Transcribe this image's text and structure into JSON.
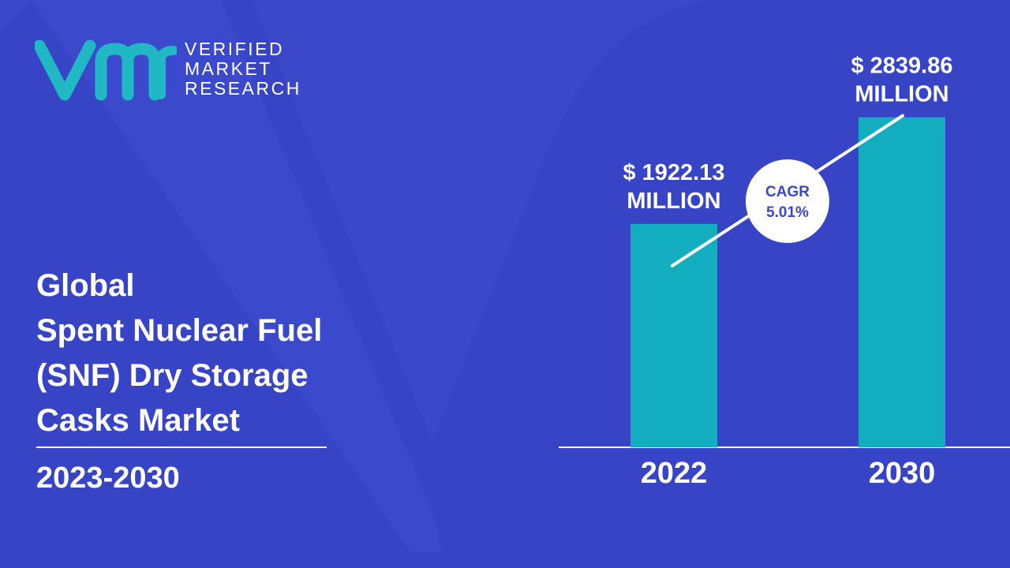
{
  "brand": {
    "logo_text": [
      "VERIFIED",
      "MARKET",
      "RESEARCH"
    ],
    "logo_color": "#1fb8c4"
  },
  "title_lines": [
    "Global",
    "Spent Nuclear Fuel",
    "(SNF) Dry Storage",
    "Casks Market"
  ],
  "period": "2023-2030",
  "colors": {
    "background": "#3a48c9",
    "bar": "#12aebf",
    "text": "#ffffff",
    "cagr_text": "#3a48c9"
  },
  "chart_data": {
    "type": "bar",
    "categories": [
      "2022",
      "2030"
    ],
    "values": [
      1922.13,
      2839.86
    ],
    "value_labels": [
      [
        "$ 1922.13",
        "MILLION"
      ],
      [
        "$ 2839.86",
        "MILLION"
      ]
    ],
    "unit": "MILLION",
    "cagr": {
      "label": "CAGR",
      "value": "5.01%"
    },
    "ylim": [
      0,
      3000
    ],
    "grid": false,
    "legend": "none"
  }
}
